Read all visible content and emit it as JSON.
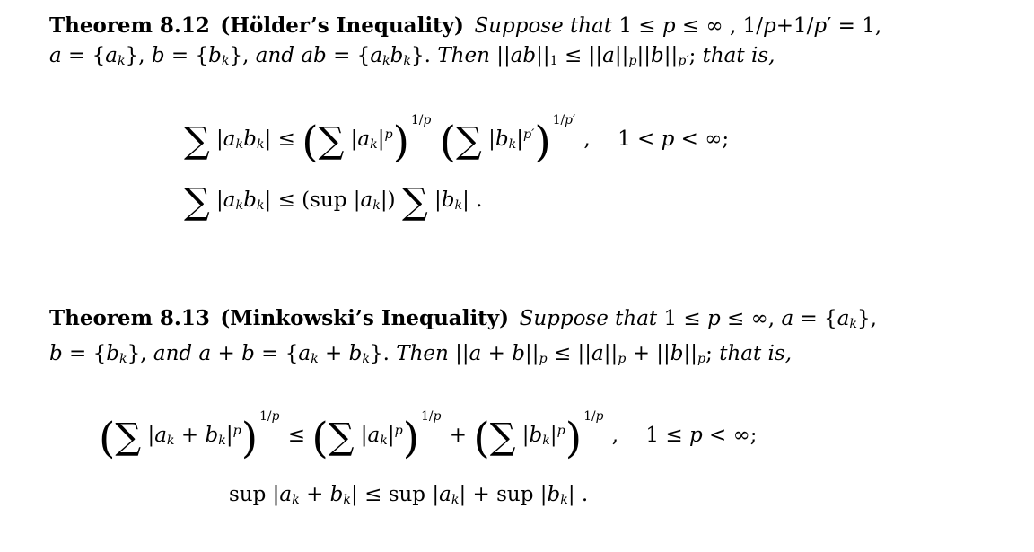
{
  "page": {
    "background_color": "#ffffff",
    "text_color": "#000000"
  },
  "theorem_812": {
    "line1": [
      {
        "c": "b",
        "t": "Theorem 8.12 (Hölder’s Inequality) "
      },
      {
        "c": "it",
        "t": "Suppose that "
      },
      {
        "c": "rm",
        "t": "1 ≤ "
      },
      {
        "c": "it",
        "t": "p"
      },
      {
        "c": "rm",
        "t": " ≤ ∞ , 1/"
      },
      {
        "c": "it",
        "t": "p"
      },
      {
        "c": "rm",
        "t": "+1/"
      },
      {
        "c": "it",
        "t": "p"
      },
      {
        "c": "rm",
        "t": "′ = 1,"
      }
    ],
    "line2": [
      {
        "c": "it",
        "t": "a"
      },
      {
        "c": "rm",
        "t": " = {"
      },
      {
        "c": "it",
        "t": "a"
      },
      {
        "c": "sub",
        "t": "k"
      },
      {
        "c": "rm",
        "t": "}, "
      },
      {
        "c": "it",
        "t": "b"
      },
      {
        "c": "rm",
        "t": " = {"
      },
      {
        "c": "it",
        "t": "b"
      },
      {
        "c": "sub",
        "t": "k"
      },
      {
        "c": "rm",
        "t": "}, "
      },
      {
        "c": "it",
        "t": "and ab "
      },
      {
        "c": "rm",
        "t": "= {"
      },
      {
        "c": "it",
        "t": "a"
      },
      {
        "c": "sub",
        "t": "k"
      },
      {
        "c": "it",
        "t": "b"
      },
      {
        "c": "sub",
        "t": "k"
      },
      {
        "c": "rm",
        "t": "}. "
      },
      {
        "c": "it",
        "t": "Then "
      },
      {
        "c": "rm",
        "t": "||"
      },
      {
        "c": "it",
        "t": "ab"
      },
      {
        "c": "rm",
        "t": "||"
      },
      {
        "c": "subrm",
        "t": "1"
      },
      {
        "c": "rm",
        "t": " ≤ ||"
      },
      {
        "c": "it",
        "t": "a"
      },
      {
        "c": "rm",
        "t": "||"
      },
      {
        "c": "sub",
        "t": "p"
      },
      {
        "c": "rm",
        "t": "||"
      },
      {
        "c": "it",
        "t": "b"
      },
      {
        "c": "rm",
        "t": "||"
      },
      {
        "c": "sub",
        "t": "p′"
      },
      {
        "c": "rm",
        "t": "; "
      },
      {
        "c": "it",
        "t": "that is,"
      }
    ],
    "eq_lp": [
      {
        "c": "bigop",
        "t": "∑"
      },
      {
        "c": "rm",
        "t": " |"
      },
      {
        "c": "it",
        "t": "a"
      },
      {
        "c": "sub",
        "t": "k"
      },
      {
        "c": "it",
        "t": "b"
      },
      {
        "c": "sub",
        "t": "k"
      },
      {
        "c": "rm",
        "t": "| ≤ "
      },
      {
        "c": "bigp",
        "t": "("
      },
      {
        "c": "bigop",
        "t": "∑"
      },
      {
        "c": "rm",
        "t": " |"
      },
      {
        "c": "it",
        "t": "a"
      },
      {
        "c": "sub",
        "t": "k"
      },
      {
        "c": "rm",
        "t": "|"
      },
      {
        "c": "sup",
        "t": "p"
      },
      {
        "c": "bigp",
        "t": ")"
      },
      {
        "c": "psuprm",
        "t": "1/"
      },
      {
        "c": "psup",
        "t": "p"
      },
      {
        "c": "rm",
        "t": " "
      },
      {
        "c": "bigp",
        "t": "("
      },
      {
        "c": "bigop",
        "t": "∑"
      },
      {
        "c": "rm",
        "t": " |"
      },
      {
        "c": "it",
        "t": "b"
      },
      {
        "c": "sub",
        "t": "k"
      },
      {
        "c": "rm",
        "t": "|"
      },
      {
        "c": "sup",
        "t": "p′"
      },
      {
        "c": "bigp",
        "t": ")"
      },
      {
        "c": "psuprm",
        "t": "1/"
      },
      {
        "c": "psup",
        "t": "p′"
      },
      {
        "c": "rm",
        "t": " ,  "
      },
      {
        "c": "rm",
        "t": "1 < "
      },
      {
        "c": "it",
        "t": "p"
      },
      {
        "c": "rm",
        "t": " < ∞;"
      }
    ],
    "eq_sup": [
      {
        "c": "bigop",
        "t": "∑"
      },
      {
        "c": "rm",
        "t": " |"
      },
      {
        "c": "it",
        "t": "a"
      },
      {
        "c": "sub",
        "t": "k"
      },
      {
        "c": "it",
        "t": "b"
      },
      {
        "c": "sub",
        "t": "k"
      },
      {
        "c": "rm",
        "t": "| ≤ (sup |"
      },
      {
        "c": "it",
        "t": "a"
      },
      {
        "c": "sub",
        "t": "k"
      },
      {
        "c": "rm",
        "t": "|) "
      },
      {
        "c": "bigop",
        "t": "∑"
      },
      {
        "c": "rm",
        "t": " |"
      },
      {
        "c": "it",
        "t": "b"
      },
      {
        "c": "sub",
        "t": "k"
      },
      {
        "c": "rm",
        "t": "| ."
      }
    ]
  },
  "theorem_813": {
    "line1": [
      {
        "c": "b",
        "t": "Theorem 8.13 (Minkowski’s Inequality) "
      },
      {
        "c": "it",
        "t": "Suppose that "
      },
      {
        "c": "rm",
        "t": "1 ≤ "
      },
      {
        "c": "it",
        "t": "p"
      },
      {
        "c": "rm",
        "t": " ≤ ∞, "
      },
      {
        "c": "it",
        "t": "a"
      },
      {
        "c": "rm",
        "t": " = {"
      },
      {
        "c": "it",
        "t": "a"
      },
      {
        "c": "sub",
        "t": "k"
      },
      {
        "c": "rm",
        "t": "},"
      }
    ],
    "line2": [
      {
        "c": "it",
        "t": "b"
      },
      {
        "c": "rm",
        "t": " = {"
      },
      {
        "c": "it",
        "t": "b"
      },
      {
        "c": "sub",
        "t": "k"
      },
      {
        "c": "rm",
        "t": "}, "
      },
      {
        "c": "it",
        "t": "and a "
      },
      {
        "c": "rm",
        "t": "+ "
      },
      {
        "c": "it",
        "t": "b "
      },
      {
        "c": "rm",
        "t": "= {"
      },
      {
        "c": "it",
        "t": "a"
      },
      {
        "c": "sub",
        "t": "k"
      },
      {
        "c": "rm",
        "t": " + "
      },
      {
        "c": "it",
        "t": "b"
      },
      {
        "c": "sub",
        "t": "k"
      },
      {
        "c": "rm",
        "t": "}. "
      },
      {
        "c": "it",
        "t": "Then "
      },
      {
        "c": "rm",
        "t": "||"
      },
      {
        "c": "it",
        "t": "a"
      },
      {
        "c": "rm",
        "t": " + "
      },
      {
        "c": "it",
        "t": "b"
      },
      {
        "c": "rm",
        "t": "||"
      },
      {
        "c": "sub",
        "t": "p"
      },
      {
        "c": "rm",
        "t": " ≤ ||"
      },
      {
        "c": "it",
        "t": "a"
      },
      {
        "c": "rm",
        "t": "||"
      },
      {
        "c": "sub",
        "t": "p"
      },
      {
        "c": "rm",
        "t": " + ||"
      },
      {
        "c": "it",
        "t": "b"
      },
      {
        "c": "rm",
        "t": "||"
      },
      {
        "c": "sub",
        "t": "p"
      },
      {
        "c": "rm",
        "t": "; "
      },
      {
        "c": "it",
        "t": "that is,"
      }
    ],
    "eq_lp": [
      {
        "c": "bigp",
        "t": "("
      },
      {
        "c": "bigop",
        "t": "∑"
      },
      {
        "c": "rm",
        "t": " |"
      },
      {
        "c": "it",
        "t": "a"
      },
      {
        "c": "sub",
        "t": "k"
      },
      {
        "c": "rm",
        "t": " + "
      },
      {
        "c": "it",
        "t": "b"
      },
      {
        "c": "sub",
        "t": "k"
      },
      {
        "c": "rm",
        "t": "|"
      },
      {
        "c": "sup",
        "t": "p"
      },
      {
        "c": "bigp",
        "t": ")"
      },
      {
        "c": "psuprm",
        "t": "1/"
      },
      {
        "c": "psup",
        "t": "p"
      },
      {
        "c": "rm",
        "t": " ≤ "
      },
      {
        "c": "bigp",
        "t": "("
      },
      {
        "c": "bigop",
        "t": "∑"
      },
      {
        "c": "rm",
        "t": " |"
      },
      {
        "c": "it",
        "t": "a"
      },
      {
        "c": "sub",
        "t": "k"
      },
      {
        "c": "rm",
        "t": "|"
      },
      {
        "c": "sup",
        "t": "p"
      },
      {
        "c": "bigp",
        "t": ")"
      },
      {
        "c": "psuprm",
        "t": "1/"
      },
      {
        "c": "psup",
        "t": "p"
      },
      {
        "c": "rm",
        "t": " + "
      },
      {
        "c": "bigp",
        "t": "("
      },
      {
        "c": "bigop",
        "t": "∑"
      },
      {
        "c": "rm",
        "t": " |"
      },
      {
        "c": "it",
        "t": "b"
      },
      {
        "c": "sub",
        "t": "k"
      },
      {
        "c": "rm",
        "t": "|"
      },
      {
        "c": "sup",
        "t": "p"
      },
      {
        "c": "bigp",
        "t": ")"
      },
      {
        "c": "psuprm",
        "t": "1/"
      },
      {
        "c": "psup",
        "t": "p"
      },
      {
        "c": "rm",
        "t": " ,  "
      },
      {
        "c": "rm",
        "t": "1 ≤ "
      },
      {
        "c": "it",
        "t": "p"
      },
      {
        "c": "rm",
        "t": " < ∞;"
      }
    ],
    "eq_sup": [
      {
        "c": "rm",
        "t": "sup |"
      },
      {
        "c": "it",
        "t": "a"
      },
      {
        "c": "sub",
        "t": "k"
      },
      {
        "c": "rm",
        "t": " + "
      },
      {
        "c": "it",
        "t": "b"
      },
      {
        "c": "sub",
        "t": "k"
      },
      {
        "c": "rm",
        "t": "| ≤ sup |"
      },
      {
        "c": "it",
        "t": "a"
      },
      {
        "c": "sub",
        "t": "k"
      },
      {
        "c": "rm",
        "t": "| + sup |"
      },
      {
        "c": "it",
        "t": "b"
      },
      {
        "c": "sub",
        "t": "k"
      },
      {
        "c": "rm",
        "t": "| ."
      }
    ]
  }
}
